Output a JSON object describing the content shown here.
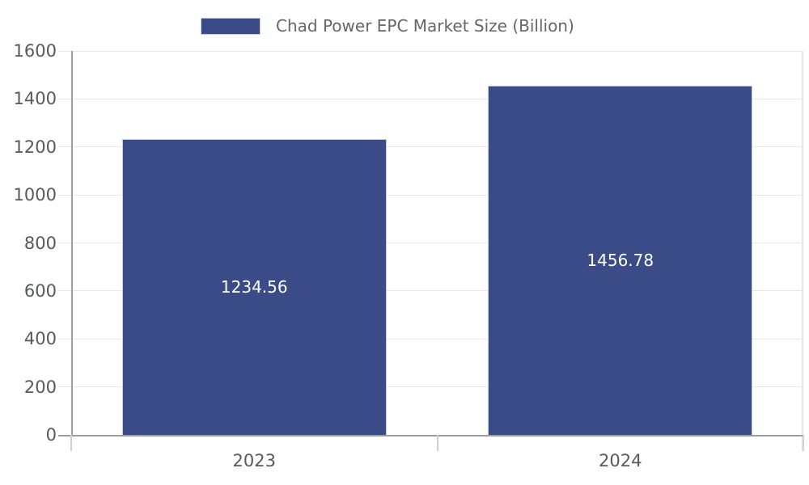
{
  "legend": {
    "label": "Chad Power EPC Market Size (Billion)"
  },
  "chart_data": {
    "type": "bar",
    "title": "Chad Power EPC Market Size (Billion)",
    "categories": [
      "2023",
      "2024"
    ],
    "series": [
      {
        "name": "Chad Power EPC Market Size (Billion)",
        "values": [
          1234.56,
          1456.78
        ]
      }
    ],
    "value_labels": [
      "1234.56",
      "1456.78"
    ],
    "xlabel": "",
    "ylabel": "",
    "ylim": [
      0,
      1600
    ],
    "yticks": [
      0,
      200,
      400,
      600,
      800,
      1000,
      1200,
      1400,
      1600
    ],
    "grid": true,
    "legend_position": "top-center",
    "colors": {
      "bar": "#3A4B87",
      "bar_edge": "#C9CCDD",
      "value_label": "#FFFFFF",
      "grid": "#E7E7E7",
      "axis": "#9D9D9D",
      "spine": "#A0A0A0",
      "right_border": "#E7E7E7",
      "xtick": "#CCD1DA",
      "tick_label": "#58595B",
      "legend_text": "#666666",
      "background": "#FFFFFF"
    }
  }
}
